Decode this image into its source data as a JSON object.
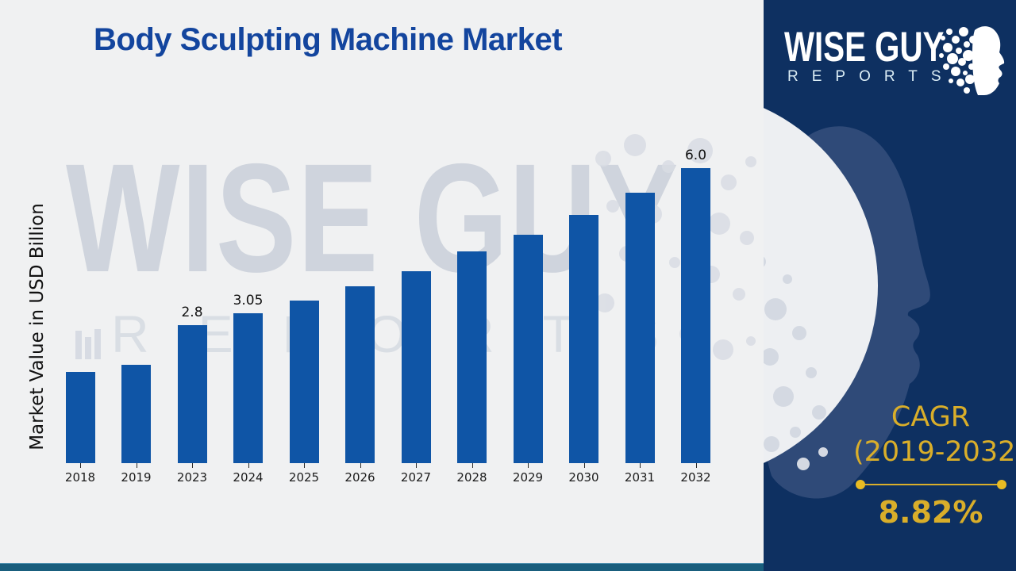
{
  "title": "Body Sculpting Machine Market",
  "y_axis_label": "Market Value in USD Billion",
  "watermark": {
    "line1": "WISE GUY",
    "line2": "REPORTS"
  },
  "logo": {
    "line1": "WISE GUY",
    "line2": "REPORTS"
  },
  "cagr": {
    "label": "CAGR",
    "range": "(2019-2032)",
    "value": "8.82%"
  },
  "colors": {
    "background": "#f0f1f2",
    "title": "#13459e",
    "bar": "#0f55a6",
    "panel_navy": "#0e3061",
    "panel_face_blue": "#2f4a78",
    "panel_circle": "#edeff2",
    "gold": "#d9ae2a",
    "bottom_strip_teal": "#195e7d",
    "watermark_gray": "#ccd3dd"
  },
  "chart_data": {
    "type": "bar",
    "categories": [
      "2018",
      "2019",
      "2023",
      "2024",
      "2025",
      "2026",
      "2027",
      "2028",
      "2029",
      "2030",
      "2031",
      "2032"
    ],
    "values": [
      1.85,
      2.0,
      2.8,
      3.05,
      3.3,
      3.6,
      3.9,
      4.3,
      4.65,
      5.05,
      5.5,
      6.0
    ],
    "bar_labels": {
      "2023": "2.8",
      "2024": "3.05",
      "2032": "6.0"
    },
    "title": "Body Sculpting Machine Market",
    "xlabel": "",
    "ylabel": "Market Value in USD Billion",
    "ylim": [
      0,
      6.5
    ],
    "bar_color": "#0f55a6",
    "grid": false,
    "legend": null
  }
}
